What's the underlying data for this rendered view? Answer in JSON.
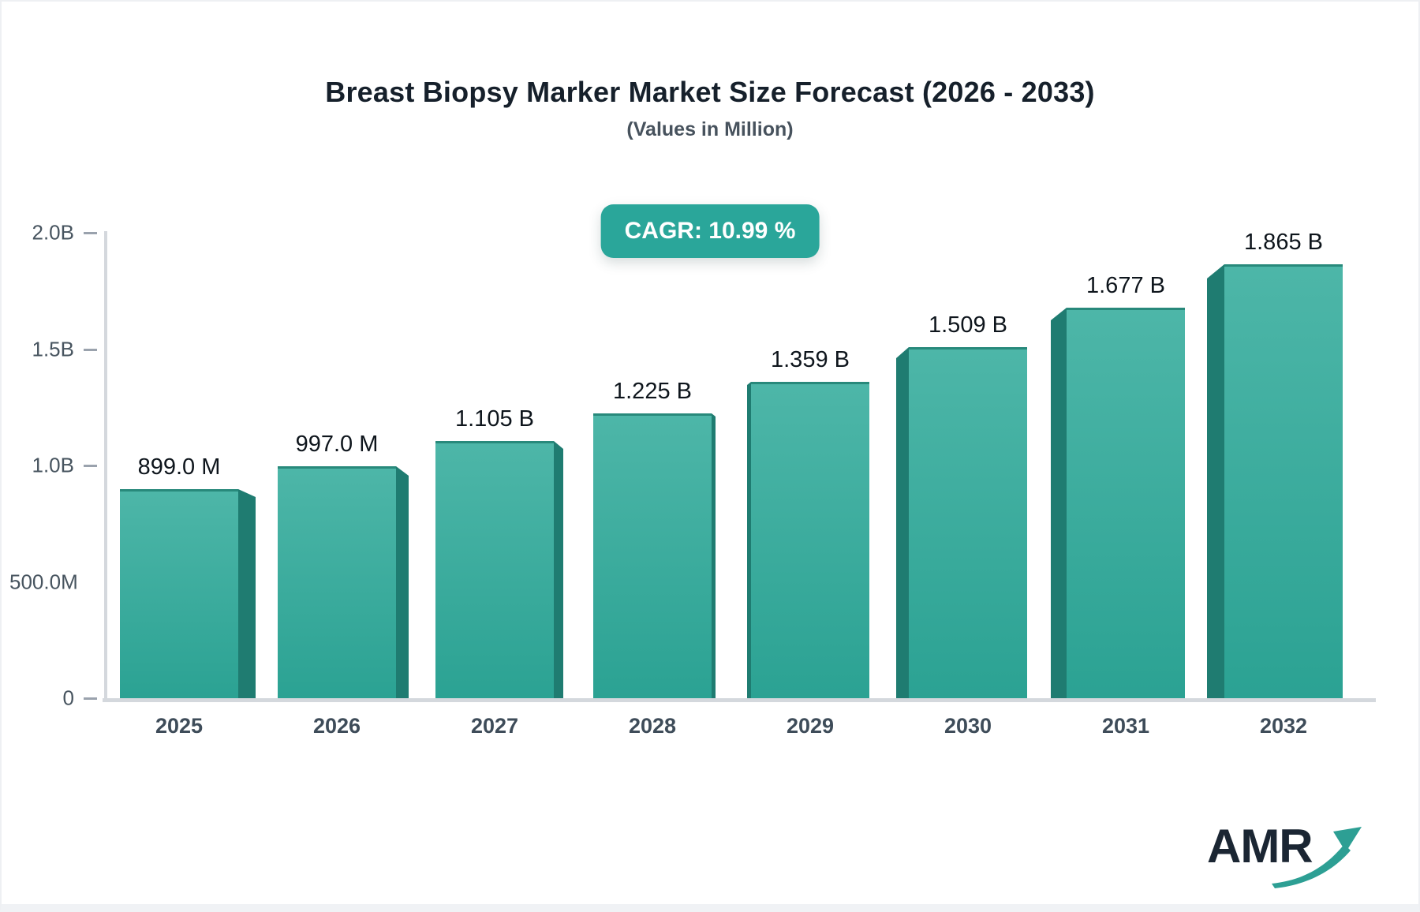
{
  "title": "Breast Biopsy Marker Market Size Forecast (2026 - 2033)",
  "subtitle": "(Values in Million)",
  "badge": {
    "label": "CAGR: 10.99 %"
  },
  "logo": {
    "text": "AMR",
    "icon": "growth-arrow-icon"
  },
  "colors": {
    "bar_face_top": "#4db6a8",
    "bar_face_bottom": "#2ba293",
    "bar_side": "#1f7c71",
    "bar_top_edge": "#28897b",
    "badge_background": "#2aa69a",
    "badge_text": "#ffffff",
    "axis_line": "#d4d8dd",
    "logo_arrow": "#2d9f94"
  },
  "chart_data": {
    "type": "bar",
    "title": "Breast Biopsy Marker Market Size Forecast (2026 - 2033)",
    "subtitle": "(Values in Million)",
    "annotation": "CAGR: 10.99 %",
    "categories": [
      "2025",
      "2026",
      "2027",
      "2028",
      "2029",
      "2030",
      "2031",
      "2032"
    ],
    "values_millions": [
      899.0,
      997.0,
      1105,
      1225,
      1359,
      1509,
      1677,
      1865
    ],
    "value_labels": [
      "899.0 M",
      "997.0 M",
      "1.105 B",
      "1.225 B",
      "1.359 B",
      "1.509 B",
      "1.677 B",
      "1.865 B"
    ],
    "xlabel": "",
    "ylabel": "",
    "ylim_millions": [
      0,
      2000
    ],
    "grid": false,
    "legend": "none",
    "y_ticks": [
      {
        "label": "2.0B",
        "value_millions": 2000,
        "dash": true
      },
      {
        "label": "1.5B",
        "value_millions": 1500,
        "dash": true
      },
      {
        "label": "1.0B",
        "value_millions": 1000,
        "dash": true
      },
      {
        "label": "500.0M",
        "value_millions": 500,
        "dash": false
      },
      {
        "label": "0",
        "value_millions": 0,
        "dash": true
      }
    ]
  }
}
